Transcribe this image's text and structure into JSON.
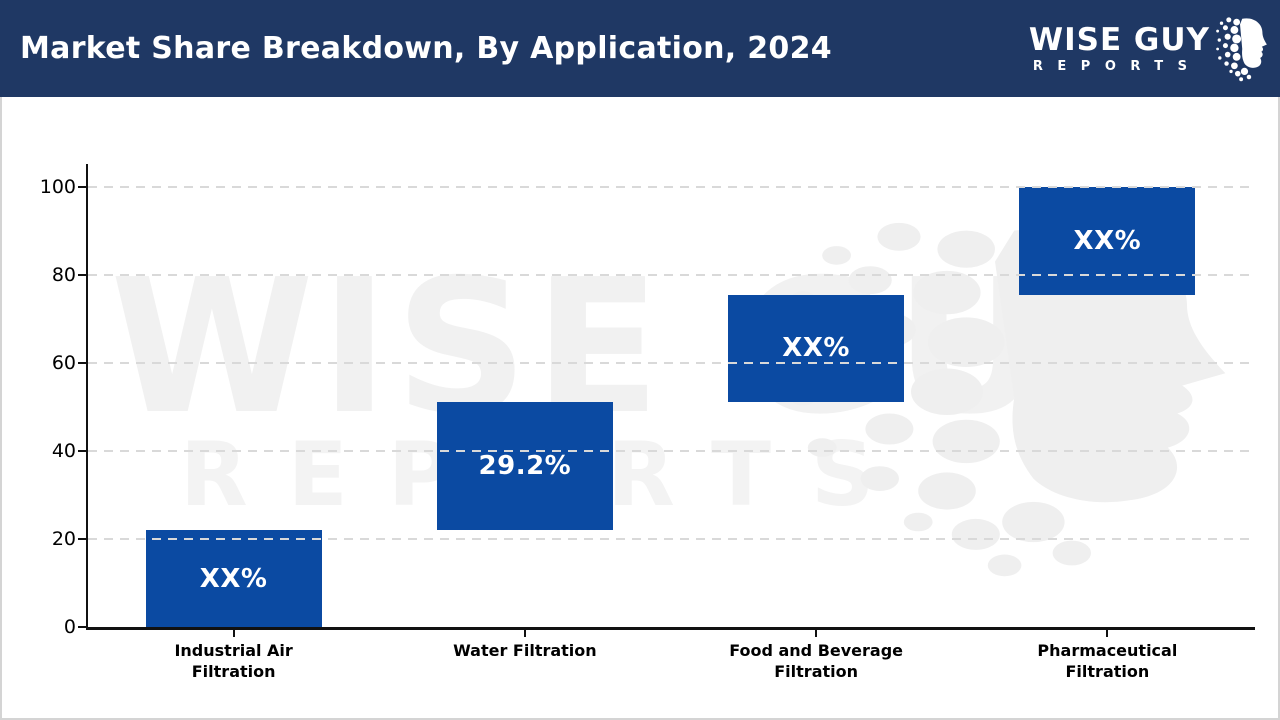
{
  "header": {
    "title": "Market Share Breakdown, By Application, 2024",
    "logo": {
      "line1": "WISE GUY",
      "line2": "REPORTS"
    }
  },
  "watermark": {
    "line1": "WISE GUY",
    "line2": "REPORTS"
  },
  "chart_data": {
    "type": "bar",
    "variant": "floating-waterfall-segments",
    "title": "Market Share Breakdown, By Application, 2024",
    "categories": [
      "Industrial Air\nFiltration",
      "Water Filtration",
      "Food and Beverage\nFiltration",
      "Pharmaceutical\nFiltration"
    ],
    "segments": [
      {
        "category": "Industrial Air Filtration",
        "start": 0,
        "end": 22,
        "label": "XX%"
      },
      {
        "category": "Water Filtration",
        "start": 22,
        "end": 51.2,
        "label": "29.2%"
      },
      {
        "category": "Food and Beverage Filtration",
        "start": 51.2,
        "end": 75.5,
        "label": "XX%"
      },
      {
        "category": "Pharmaceutical Filtration",
        "start": 75.5,
        "end": 100,
        "label": "XX%"
      }
    ],
    "yticks": [
      0,
      20,
      40,
      60,
      80,
      100
    ],
    "ylim": [
      0,
      100
    ],
    "xlabel": "",
    "ylabel": "",
    "legend": "none",
    "grid": "horizontal-dashed",
    "bar_color": "#0b4aa2"
  },
  "colors": {
    "header_bg": "#1f3864",
    "bar": "#0b4aa2",
    "grid": "#d9d9d9",
    "axis": "#111111",
    "watermark": "#f1f1f1",
    "frame": "#d4d4d4"
  }
}
